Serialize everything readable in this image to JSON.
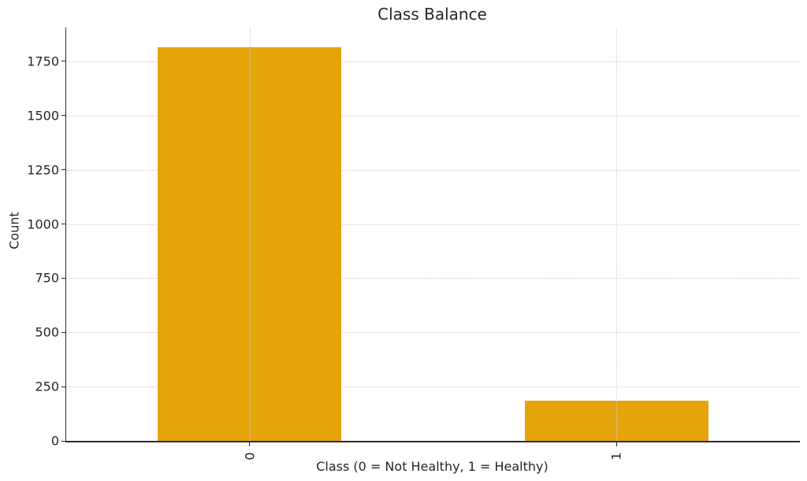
{
  "chart_data": {
    "type": "bar",
    "title": "Class Balance",
    "xlabel": "Class (0 = Not Healthy, 1 = Healthy)",
    "ylabel": "Count",
    "categories": [
      "0",
      "1"
    ],
    "values": [
      1815,
      185
    ],
    "ylim": [
      0,
      1906
    ],
    "yticks": [
      0,
      250,
      500,
      750,
      1000,
      1250,
      1500,
      1750
    ],
    "bar_width_fraction": 0.5,
    "xtick_rotation": 90,
    "grid": "dotted, horizontal at yticks and vertical at category centers",
    "legend_position": "none",
    "colors": {
      "bar": "#E5A40A",
      "grid": "#cccccc",
      "spine": "#2b2b2b",
      "text": "#262626",
      "background": "#ffffff"
    }
  }
}
